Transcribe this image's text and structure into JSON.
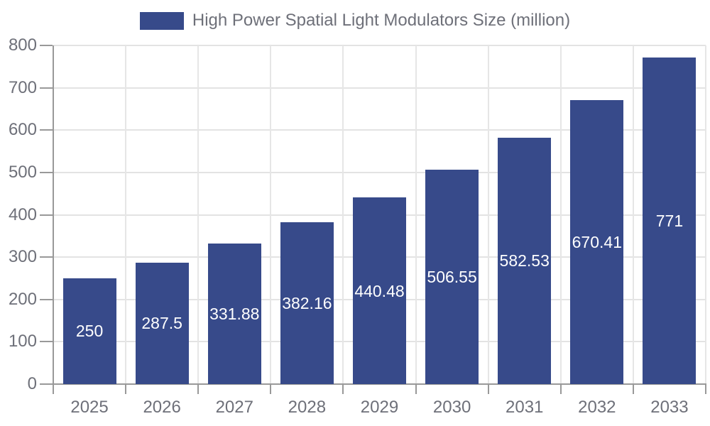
{
  "chart_data": {
    "type": "bar",
    "title": "High Power Spatial Light Modulators Size (million)",
    "legend_position": "top",
    "categories": [
      "2025",
      "2026",
      "2027",
      "2028",
      "2029",
      "2030",
      "2031",
      "2032",
      "2033"
    ],
    "values": [
      250,
      287.5,
      331.88,
      382.16,
      440.48,
      506.55,
      582.53,
      670.41,
      771
    ],
    "labels": [
      "250",
      "287.5",
      "331.88",
      "382.16",
      "440.48",
      "506.55",
      "582.53",
      "670.41",
      "771"
    ],
    "yticks": [
      "0",
      "100",
      "200",
      "300",
      "400",
      "500",
      "600",
      "700",
      "800"
    ],
    "ylim": [
      0,
      800
    ],
    "xlabel": "",
    "ylabel": "",
    "grid": true,
    "value_label_position": "inside-center",
    "colors": {
      "bar": "#374A8A",
      "value_label": "#FFFFFF",
      "axis_label": "#6E7079",
      "legend_text": "#6E7079",
      "axis_line": "#999999",
      "gridline": "#E3E3E3",
      "gridline_v": "#E6E6E6",
      "background": "#FFFFFF"
    }
  }
}
